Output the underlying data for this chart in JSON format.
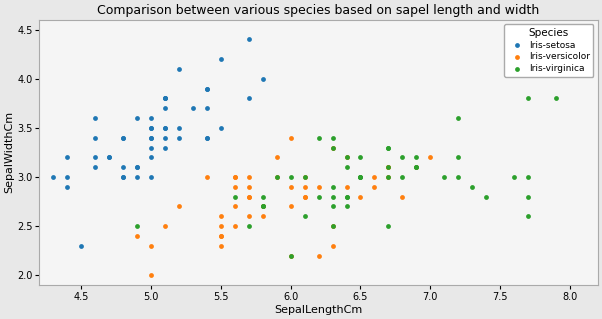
{
  "title": "Comparison between various species based on sapel length and width",
  "xlabel": "SepalLengthCm",
  "ylabel": "SepalWidthCm",
  "xlim": [
    4.2,
    8.2
  ],
  "ylim": [
    1.9,
    4.6
  ],
  "xticks": [
    4.5,
    5.0,
    5.5,
    6.0,
    6.5,
    7.0,
    7.5,
    8.0
  ],
  "yticks": [
    2.0,
    2.5,
    3.0,
    3.5,
    4.0,
    4.5
  ],
  "species": [
    "Iris-setosa",
    "Iris-versicolor",
    "Iris-virginica"
  ],
  "colors": [
    "#1f77b4",
    "#ff7f0e",
    "#2ca02c"
  ],
  "setosa_x": [
    5.1,
    4.9,
    4.7,
    4.6,
    5.0,
    5.4,
    4.6,
    5.0,
    4.4,
    4.9,
    5.4,
    4.8,
    4.8,
    4.3,
    5.8,
    5.7,
    5.4,
    5.1,
    5.7,
    5.1,
    5.4,
    5.1,
    4.6,
    5.1,
    4.8,
    5.0,
    5.0,
    5.2,
    5.2,
    4.7,
    4.8,
    5.4,
    5.2,
    5.5,
    4.9,
    5.0,
    5.5,
    4.9,
    4.4,
    5.1,
    5.0,
    4.5,
    4.4,
    5.0,
    5.1,
    4.8,
    5.1,
    4.6,
    5.3,
    5.0
  ],
  "setosa_y": [
    3.5,
    3.0,
    3.2,
    3.1,
    3.6,
    3.9,
    3.4,
    3.4,
    2.9,
    3.1,
    3.7,
    3.4,
    3.0,
    3.0,
    4.0,
    4.4,
    3.9,
    3.5,
    3.8,
    3.8,
    3.4,
    3.7,
    3.6,
    3.3,
    3.4,
    3.0,
    3.4,
    3.5,
    3.4,
    3.2,
    3.1,
    3.4,
    4.1,
    4.2,
    3.1,
    3.2,
    3.5,
    3.6,
    3.0,
    3.4,
    3.5,
    2.3,
    3.2,
    3.5,
    3.8,
    3.0,
    3.8,
    3.2,
    3.7,
    3.3
  ],
  "versicolor_x": [
    7.0,
    6.4,
    6.9,
    5.5,
    6.5,
    5.7,
    6.3,
    4.9,
    6.6,
    5.2,
    5.0,
    5.9,
    6.0,
    6.1,
    5.6,
    6.7,
    5.6,
    5.8,
    6.2,
    5.6,
    5.9,
    6.1,
    6.3,
    6.1,
    6.4,
    6.6,
    6.8,
    6.7,
    6.0,
    5.7,
    5.5,
    5.5,
    5.8,
    6.0,
    5.4,
    6.0,
    6.7,
    6.3,
    5.6,
    5.5,
    5.5,
    6.1,
    5.8,
    5.0,
    5.6,
    5.7,
    5.7,
    6.2,
    5.1,
    5.7
  ],
  "versicolor_y": [
    3.2,
    3.2,
    3.1,
    2.3,
    2.8,
    2.8,
    3.3,
    2.4,
    2.9,
    2.7,
    2.0,
    3.0,
    2.2,
    2.9,
    2.9,
    3.1,
    3.0,
    2.7,
    2.2,
    2.5,
    3.2,
    2.8,
    2.5,
    2.8,
    2.9,
    3.0,
    2.8,
    3.0,
    2.9,
    2.6,
    2.4,
    2.4,
    2.7,
    2.7,
    3.0,
    3.4,
    3.1,
    2.3,
    3.0,
    2.5,
    2.6,
    3.0,
    2.6,
    2.3,
    2.7,
    3.0,
    2.9,
    2.9,
    2.5,
    2.8
  ],
  "virginica_x": [
    6.3,
    5.8,
    7.1,
    6.3,
    6.5,
    7.6,
    4.9,
    7.3,
    6.7,
    7.2,
    6.5,
    6.4,
    6.8,
    5.7,
    5.8,
    6.4,
    6.5,
    7.7,
    7.7,
    6.0,
    6.9,
    5.6,
    7.7,
    6.3,
    6.7,
    7.2,
    6.2,
    6.1,
    6.4,
    7.2,
    7.4,
    7.9,
    6.4,
    6.3,
    6.1,
    7.7,
    6.3,
    6.4,
    6.0,
    6.9,
    6.7,
    6.9,
    5.8,
    6.8,
    6.7,
    6.7,
    6.3,
    6.5,
    6.2,
    5.9
  ],
  "virginica_y": [
    3.3,
    2.7,
    3.0,
    2.9,
    3.0,
    3.0,
    2.5,
    2.9,
    2.5,
    3.6,
    3.2,
    2.7,
    3.0,
    2.5,
    2.8,
    3.2,
    3.0,
    3.8,
    2.6,
    2.2,
    3.2,
    2.8,
    2.8,
    2.7,
    3.3,
    3.2,
    2.8,
    3.0,
    2.8,
    3.0,
    2.8,
    3.8,
    2.8,
    2.8,
    2.6,
    3.0,
    3.4,
    3.1,
    3.0,
    3.1,
    3.1,
    3.1,
    2.7,
    3.2,
    3.3,
    3.0,
    2.5,
    3.0,
    3.4,
    3.0
  ],
  "legend_title": "Species",
  "marker_size": 12,
  "title_fontsize": 9,
  "label_fontsize": 8,
  "tick_fontsize": 7,
  "fig_facecolor": "#e8e8e8",
  "ax_facecolor": "#f5f5f5"
}
